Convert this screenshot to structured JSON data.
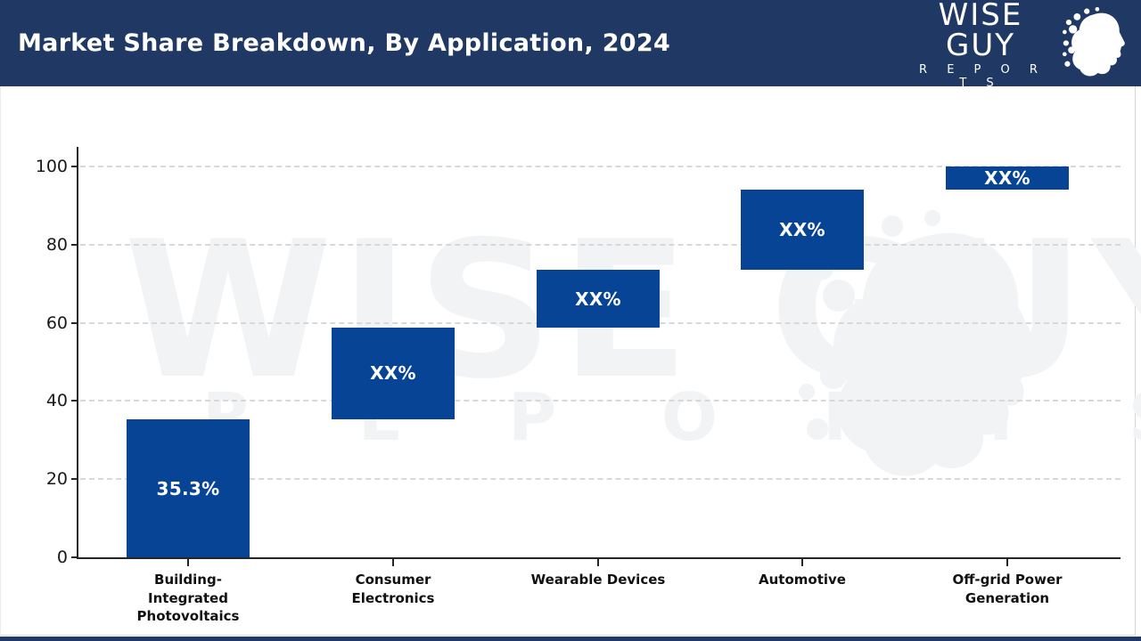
{
  "header": {
    "title": "Market Share Breakdown, By Application, 2024",
    "bg_color": "#1f3864",
    "logo": {
      "line1": "WISE GUY",
      "line2": "R E P O R T S",
      "head_icon": "dotted-head-profile"
    }
  },
  "watermark": {
    "line1": "WISE GUY",
    "line2": "R E P O R T S",
    "head_icon": "dotted-head-profile",
    "color": "#f2f3f5"
  },
  "chart_data": {
    "type": "bar",
    "subtype": "waterfall",
    "title": "Market Share Breakdown, By Application, 2024",
    "xlabel": "",
    "ylabel": "",
    "categories": [
      "Building-\nIntegrated\nPhotovoltaics",
      "Consumer\nElectronics",
      "Wearable Devices",
      "Automotive",
      "Off-grid Power\nGeneration"
    ],
    "segments": [
      {
        "category": "Building-Integrated Photovoltaics",
        "start": 0,
        "end": 35.3,
        "label": "35.3%"
      },
      {
        "category": "Consumer Electronics",
        "start": 35.3,
        "end": 58.8,
        "label": "XX%"
      },
      {
        "category": "Wearable Devices",
        "start": 58.8,
        "end": 73.5,
        "label": "XX%"
      },
      {
        "category": "Automotive",
        "start": 73.5,
        "end": 94.1,
        "label": "XX%"
      },
      {
        "category": "Off-grid Power Generation",
        "start": 94.1,
        "end": 100,
        "label": "XX%"
      }
    ],
    "yticks": [
      0,
      20,
      40,
      60,
      80,
      100
    ],
    "ylim": [
      0,
      105
    ],
    "bar_color": "#074495",
    "label_color": "#ffffff",
    "grid": true,
    "grid_style": "dashed",
    "legend": false
  }
}
